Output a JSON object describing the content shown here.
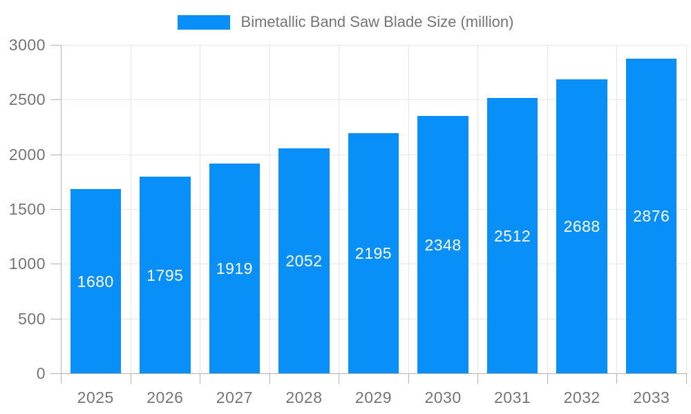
{
  "chart_data": {
    "type": "bar",
    "title": "Bimetallic Band Saw Blade Size (million)",
    "categories": [
      "2025",
      "2026",
      "2027",
      "2028",
      "2029",
      "2030",
      "2031",
      "2032",
      "2033"
    ],
    "values": [
      1680,
      1795,
      1919,
      2052,
      2195,
      2348,
      2512,
      2688,
      2876
    ],
    "xlabel": "",
    "ylabel": "",
    "ylim": [
      0,
      3000
    ],
    "yticks": [
      0,
      500,
      1000,
      1500,
      2000,
      2500,
      3000
    ],
    "grid": true,
    "legend_position": "top-center",
    "value_labels": "inside-middle",
    "colors": {
      "bar": "#0890f8",
      "grid": "#e6e6e6",
      "axis": "#b3b3b3",
      "text": "#757575",
      "value_text": "#ffffff",
      "background": "#ffffff"
    }
  },
  "legend": {
    "label": "Bimetallic Band Saw Blade Size (million)",
    "swatch": "bar-color-swatch"
  }
}
